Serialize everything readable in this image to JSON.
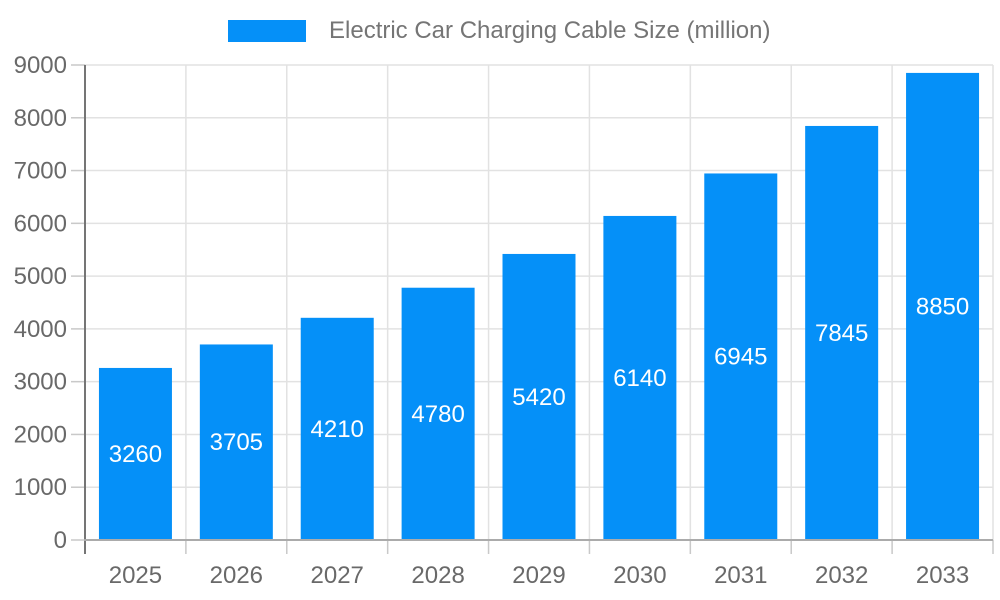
{
  "legend": {
    "label": "Electric Car Charging Cable Size (million)"
  },
  "chart_data": {
    "type": "bar",
    "title": "Electric Car Charging Cable Size (million)",
    "series_name": "Electric Car Charging Cable Size (million)",
    "categories": [
      "2025",
      "2026",
      "2027",
      "2028",
      "2029",
      "2030",
      "2031",
      "2032",
      "2033"
    ],
    "values": [
      3260,
      3705,
      4210,
      4780,
      5420,
      6140,
      6945,
      7845,
      8850
    ],
    "value_labels": [
      "3260",
      "3705",
      "4210",
      "4780",
      "5420",
      "6140",
      "6945",
      "7845",
      "8850"
    ],
    "xlabel": "",
    "ylabel": "",
    "ylim": [
      0,
      9000
    ],
    "yticks": [
      0,
      1000,
      2000,
      3000,
      4000,
      5000,
      6000,
      7000,
      8000,
      9000
    ],
    "grid": true,
    "legend_position": "top-center",
    "colors": {
      "bar": "#0590f8",
      "value_label": "#ffffff",
      "gridline": "#e2e2e2",
      "tick": "#c9c9c9",
      "y_axis_line": "#757575",
      "x_axis_line": "#ababab",
      "axis_label": "#696969",
      "legend_label": "#757575",
      "background": "#ffffff"
    }
  }
}
